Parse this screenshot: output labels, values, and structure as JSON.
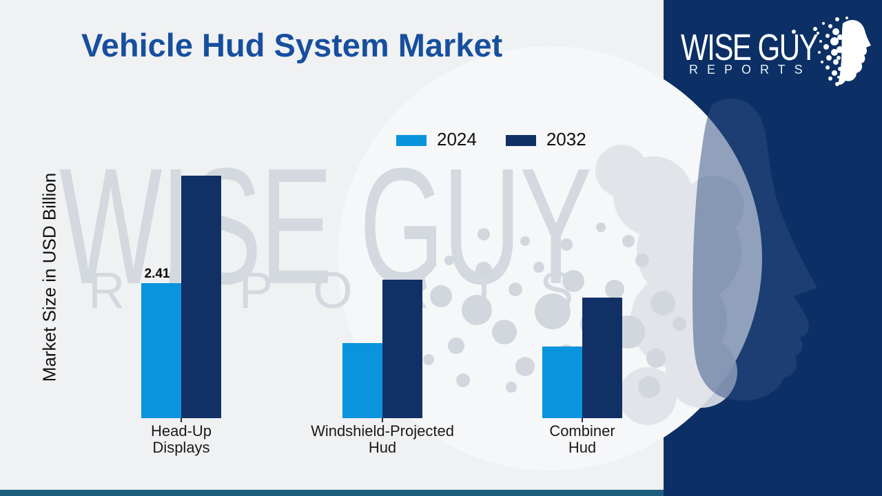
{
  "header": {
    "title": "Vehicle Hud System Market"
  },
  "logo": {
    "line1": "WISE GUY",
    "line2": "REPORTS"
  },
  "watermark": {
    "line1": "WISE GUY",
    "line2": "REPORTS"
  },
  "chart_data": {
    "type": "bar",
    "title": "Vehicle Hud System Market",
    "xlabel": "",
    "ylabel": "Market Size in USD Billion",
    "categories": [
      "Head-Up Displays",
      "Windshield-Projected Hud",
      "Combiner Hud"
    ],
    "series": [
      {
        "name": "2024",
        "color": "#0994dd",
        "values": [
          2.41,
          1.34,
          1.28
        ]
      },
      {
        "name": "2032",
        "color": "#113065",
        "values": [
          4.33,
          2.47,
          2.15
        ]
      }
    ],
    "data_labels": [
      {
        "series": "2024",
        "category": "Head-Up Displays",
        "text": "2.41"
      }
    ],
    "ylim": [
      0,
      4.6
    ],
    "grid": false,
    "legend_position": "top-center",
    "y_axis_ticks_visible": false
  },
  "colors": {
    "accent_blue_2024": "#0994dd",
    "navy_2032": "#113065",
    "brand_panel_navy": "#0c3065",
    "footer_teal": "#1d5d7d",
    "title_blue": "#174f9e",
    "background": "#f0f1f2",
    "watermark_gray": "#d4d9e0"
  }
}
